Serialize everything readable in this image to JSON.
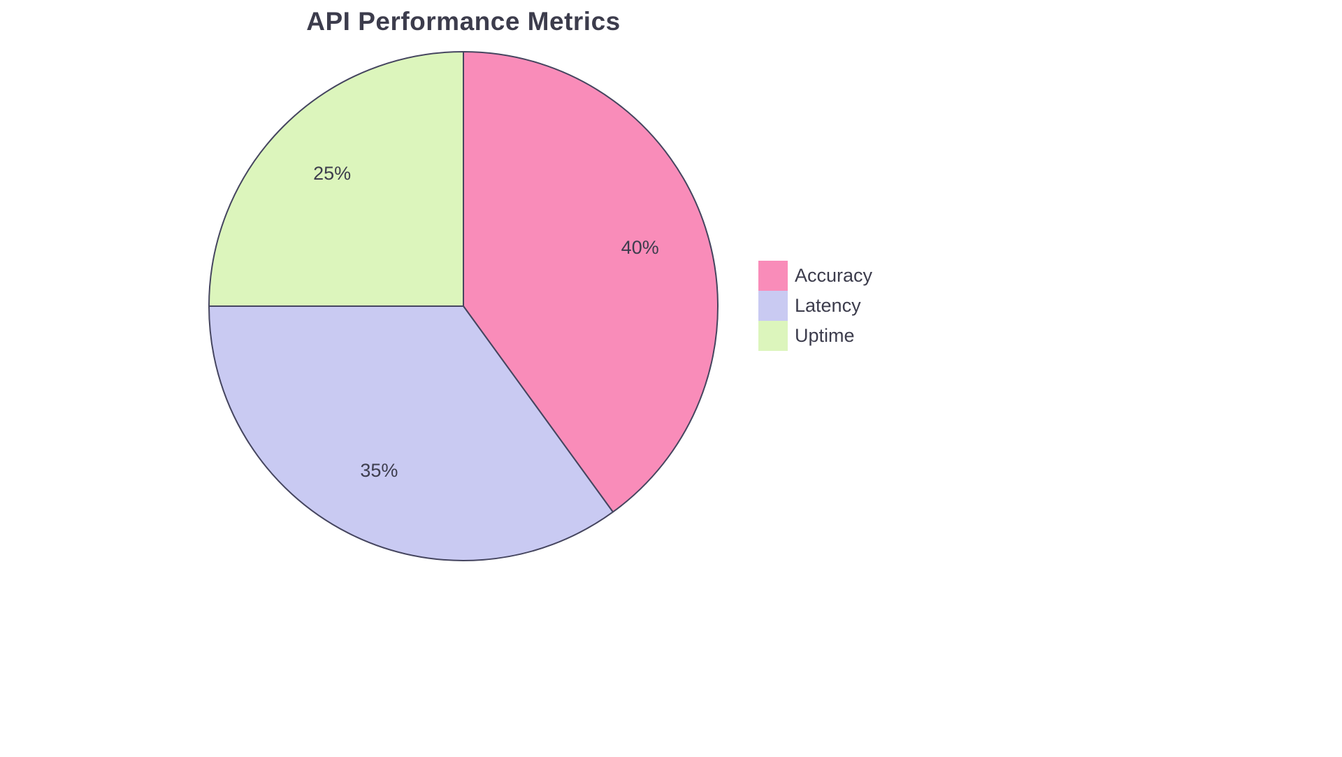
{
  "title": "API Performance Metrics",
  "chart_data": {
    "type": "pie",
    "title": "API Performance Metrics",
    "labels": [
      "Accuracy",
      "Latency",
      "Uptime"
    ],
    "values": [
      40,
      35,
      25
    ],
    "value_labels": [
      "40%",
      "35%",
      "25%"
    ],
    "colors": [
      "#F98CB9",
      "#C9CAF2",
      "#DCF5BC"
    ],
    "stroke_color": "#45455F",
    "label_color": "#3D3D4D",
    "legend_position": "right",
    "start_angle_deg": 0,
    "direction": "clockwise",
    "background_color": "#FFFFFF"
  },
  "legend": {
    "items": [
      {
        "label": "Accuracy",
        "color": "#F98CB9"
      },
      {
        "label": "Latency",
        "color": "#C9CAF2"
      },
      {
        "label": "Uptime",
        "color": "#DCF5BC"
      }
    ]
  }
}
